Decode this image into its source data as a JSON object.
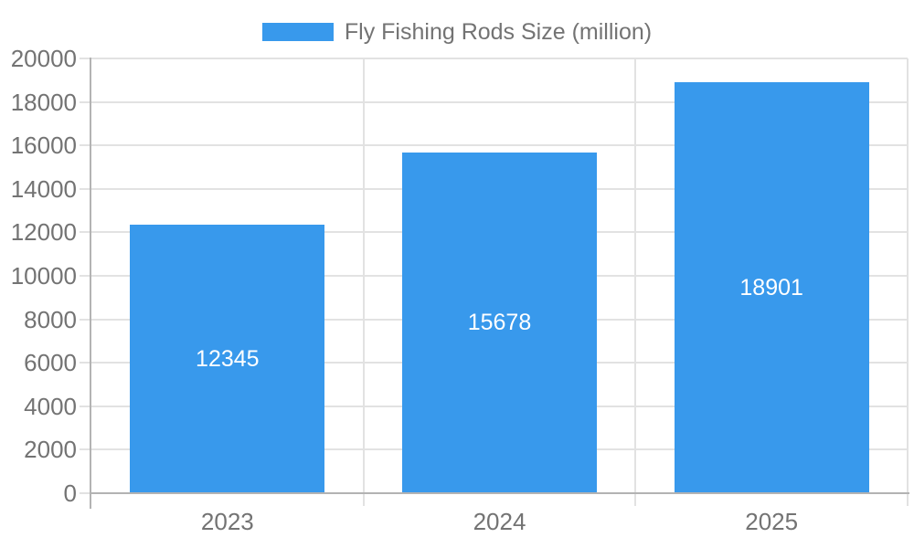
{
  "chart_data": {
    "type": "bar",
    "title": "Fly Fishing Rods Size (million)",
    "categories": [
      "2023",
      "2024",
      "2025"
    ],
    "values": [
      12345,
      15678,
      18901
    ],
    "series": [
      {
        "name": "Fly Fishing Rods Size (million)",
        "values": [
          12345,
          15678,
          18901
        ]
      }
    ],
    "xlabel": "",
    "ylabel": "",
    "ylim": [
      0,
      20000
    ],
    "ytick_step": 2000,
    "ytick_labels": [
      "0",
      "2000",
      "4000",
      "6000",
      "8000",
      "10000",
      "12000",
      "14000",
      "16000",
      "18000",
      "20000"
    ],
    "grid": true,
    "legend_position": "top",
    "bar_label_position": "inside-center",
    "colors": {
      "bar": "#3899ec",
      "bar_label": "#ffffff",
      "axis_text": "#737373",
      "grid_line": "#e2e2e2",
      "axis_line": "#b3b3b3",
      "background": "#ffffff"
    }
  }
}
